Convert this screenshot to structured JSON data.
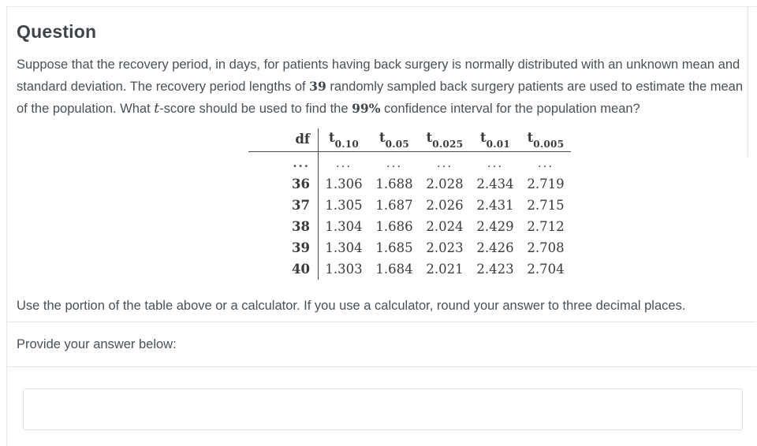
{
  "question": {
    "title": "Question",
    "prompt_segments": [
      {
        "text": "Suppose that the recovery period, in days, for patients having back surgery is normally distributed with an unknown mean and standard deviation. The recovery period lengths of ",
        "style": "normal"
      },
      {
        "text": "39",
        "style": "math-bold"
      },
      {
        "text": " randomly sampled back surgery patients are used to estimate the mean of the population. What ",
        "style": "normal"
      },
      {
        "text": "t",
        "style": "math-italic"
      },
      {
        "text": "-score should be used to find the ",
        "style": "normal"
      },
      {
        "text": "99%",
        "style": "math-bold"
      },
      {
        "text": " confidence interval for the population mean?",
        "style": "normal"
      }
    ],
    "note": "Use the portion of the table above or a calculator. If you use a calculator, round your answer to three decimal places."
  },
  "t_table": {
    "corner_header": "df",
    "col_headers": [
      {
        "base": "t",
        "sub": "0.10"
      },
      {
        "base": "t",
        "sub": "0.05"
      },
      {
        "base": "t",
        "sub": "0.025"
      },
      {
        "base": "t",
        "sub": "0.01"
      },
      {
        "base": "t",
        "sub": "0.005"
      }
    ],
    "ellipsis": "...",
    "rows": [
      {
        "df": "36",
        "values": [
          "1.306",
          "1.688",
          "2.028",
          "2.434",
          "2.719"
        ]
      },
      {
        "df": "37",
        "values": [
          "1.305",
          "1.687",
          "2.026",
          "2.431",
          "2.715"
        ]
      },
      {
        "df": "38",
        "values": [
          "1.304",
          "1.686",
          "2.024",
          "2.429",
          "2.712"
        ]
      },
      {
        "df": "39",
        "values": [
          "1.304",
          "1.685",
          "2.023",
          "2.426",
          "2.708"
        ]
      },
      {
        "df": "40",
        "values": [
          "1.303",
          "1.684",
          "2.021",
          "2.423",
          "2.704"
        ]
      }
    ]
  },
  "answer": {
    "prompt": "Provide your answer below:",
    "input_value": "",
    "input_placeholder": ""
  },
  "colors": {
    "heading_text": "#3e4449",
    "body_text": "#4a5056",
    "table_text": "#3a3a3a",
    "panel_border": "#e7e7e7",
    "table_rule": "#4a4a4a"
  }
}
